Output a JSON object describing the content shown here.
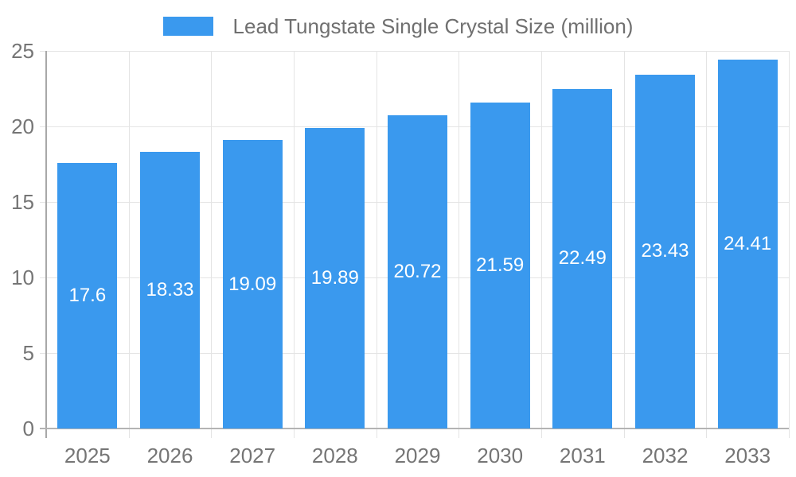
{
  "legend": {
    "label": "Lead Tungstate Single Crystal Size (million)"
  },
  "chart_data": {
    "type": "bar",
    "title": "Lead Tungstate Single Crystal Size (million)",
    "series_name": "Lead Tungstate Single Crystal Size (million)",
    "categories": [
      "2025",
      "2026",
      "2027",
      "2028",
      "2029",
      "2030",
      "2031",
      "2032",
      "2033"
    ],
    "values": [
      17.6,
      18.33,
      19.09,
      19.89,
      20.72,
      21.59,
      22.49,
      23.43,
      24.41
    ],
    "value_labels": [
      "17.6",
      "18.33",
      "19.09",
      "19.89",
      "20.72",
      "21.59",
      "22.49",
      "23.43",
      "24.41"
    ],
    "xlabel": "",
    "ylabel": "",
    "ylim": [
      0,
      25
    ],
    "yticks": [
      0,
      5,
      10,
      15,
      20,
      25
    ],
    "grid": true,
    "legend_position": "top"
  },
  "colors": {
    "bar": "#3A99EE",
    "value_label": "#ffffff",
    "axis_text": "#757575",
    "legend_text": "#707070",
    "gridline": "#e4e4e4",
    "y_axis_line": "#a8a8a8",
    "x_axis_line": "#b3b3b3"
  }
}
